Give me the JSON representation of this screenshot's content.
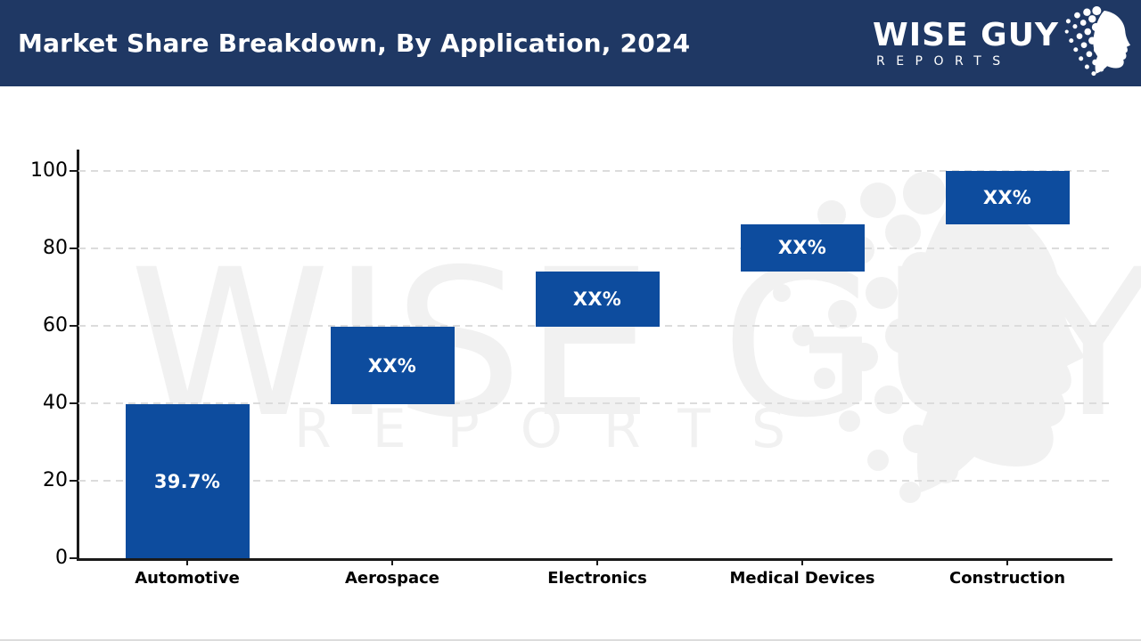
{
  "header": {
    "title": "Market Share Breakdown, By Application, 2024",
    "bg_color": "#1F3864",
    "logo": {
      "line1": "WISE GUY",
      "line2": "REPORTS"
    }
  },
  "watermark": {
    "line1": "WISE GUY",
    "line2": "REPORTS"
  },
  "chart_data": {
    "type": "bar",
    "subtype": "waterfall",
    "title": "Market Share Breakdown, By Application, 2024",
    "categories": [
      "Automotive",
      "Aerospace",
      "Electronics",
      "Medical Devices",
      "Construction"
    ],
    "values": [
      39.7,
      20.1,
      14.3,
      12.2,
      13.7
    ],
    "segments": [
      {
        "category": "Automotive",
        "start": 0,
        "end": 39.7,
        "value_label": "39.7%"
      },
      {
        "category": "Aerospace",
        "start": 39.7,
        "end": 59.8,
        "value_label": "XX%"
      },
      {
        "category": "Electronics",
        "start": 59.8,
        "end": 74.1,
        "value_label": "XX%"
      },
      {
        "category": "Medical Devices",
        "start": 74.1,
        "end": 86.3,
        "value_label": "XX%"
      },
      {
        "category": "Construction",
        "start": 86.3,
        "end": 100.0,
        "value_label": "XX%"
      }
    ],
    "xlabel": "",
    "ylabel": "",
    "yticks": [
      0,
      20,
      40,
      60,
      80,
      100
    ],
    "ylim": [
      0,
      105
    ],
    "grid": "dashed horizontal",
    "legend": "none",
    "bar_color": "#0D4C9E",
    "bar_label_color": "#ffffff",
    "axis_color": "#1a1a1a",
    "grid_color": "#dcdcdc"
  }
}
